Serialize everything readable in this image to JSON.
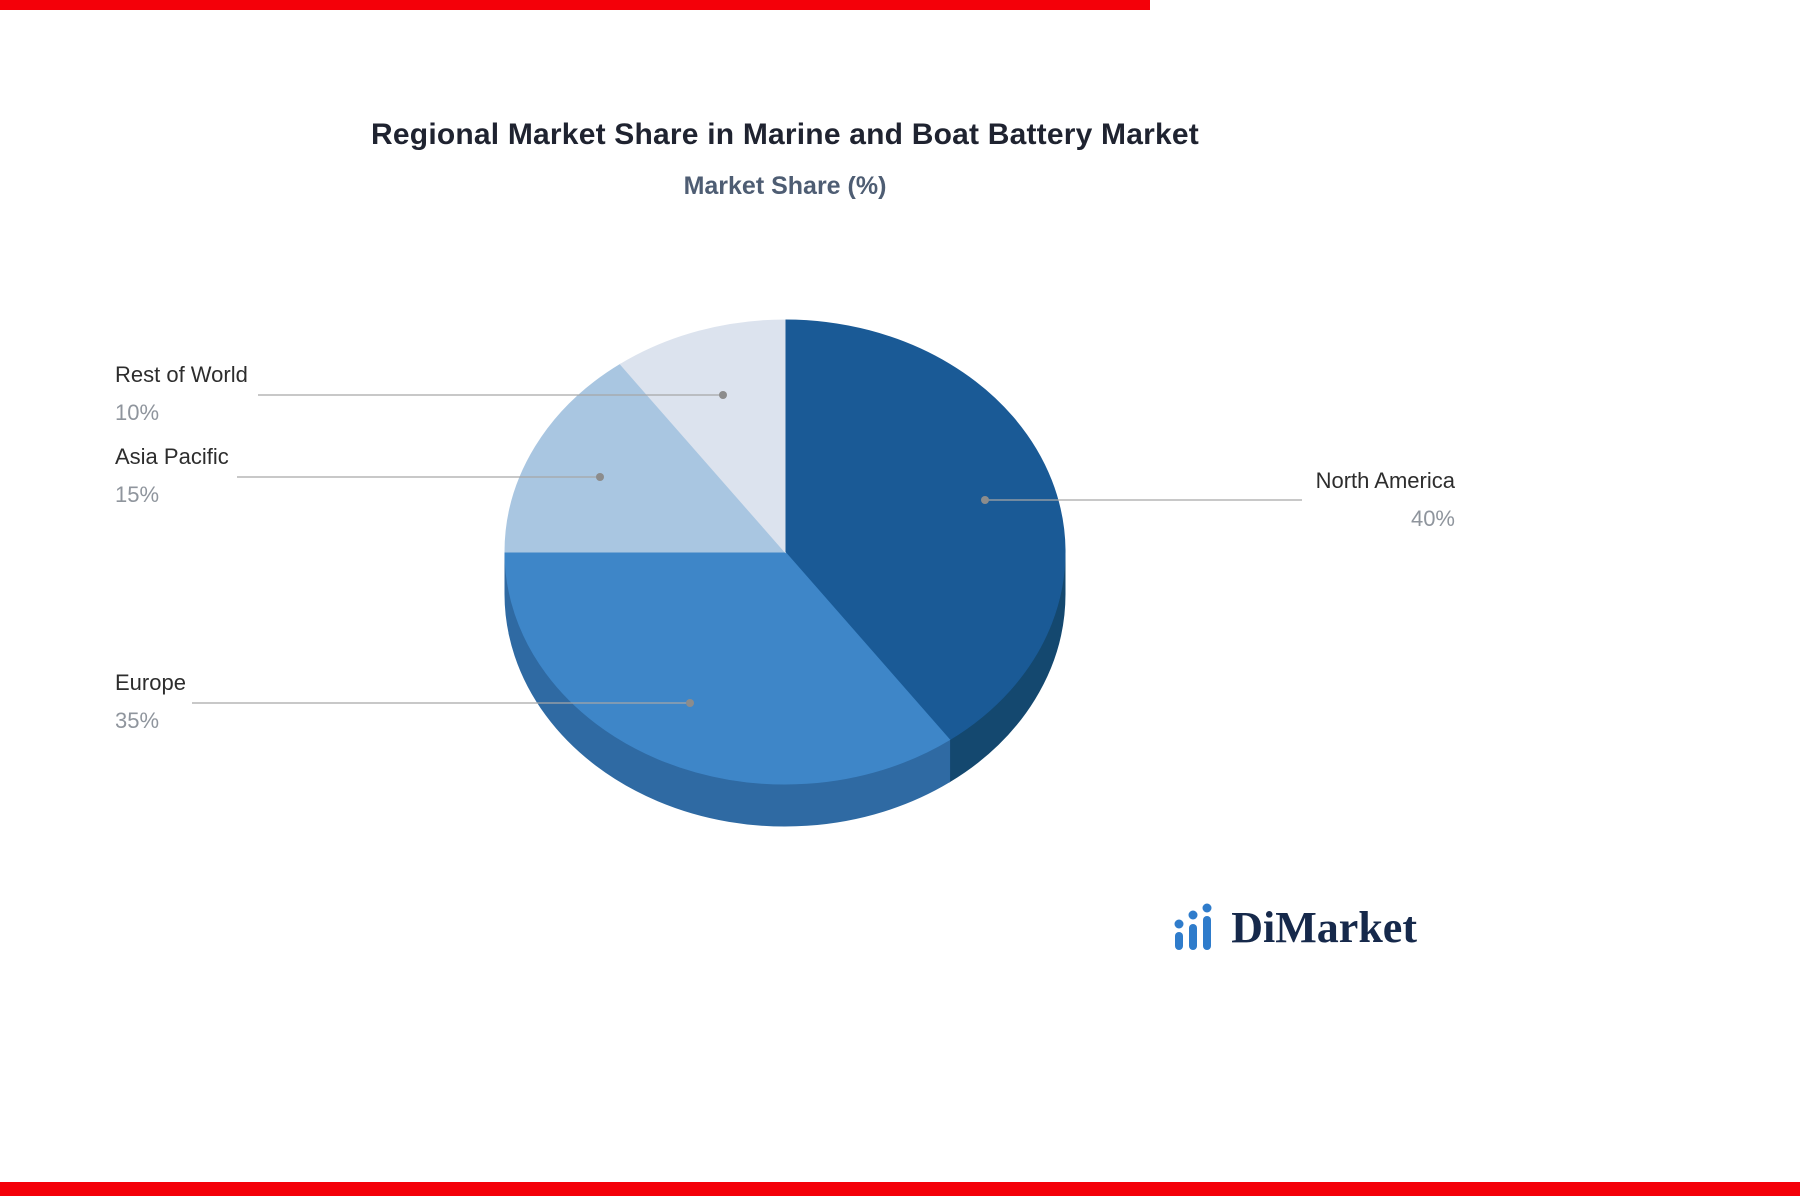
{
  "page": {
    "background": "#ffffff",
    "accent_red": "#f40009"
  },
  "header": {
    "title": "Regional Market Share in Marine and Boat Battery Market",
    "subtitle": "Market Share (%)"
  },
  "chart_data": {
    "type": "pie",
    "title": "Regional Market Share in Marine and Boat Battery Market",
    "subtitle": "Market Share (%)",
    "labels": [
      "North America",
      "Europe",
      "Asia Pacific",
      "Rest of World"
    ],
    "values": [
      40,
      35,
      15,
      10
    ],
    "unit": "%",
    "start_angle_deg": 0,
    "direction": "clockwise",
    "style": "3d-pie",
    "colors": [
      "#1a5a96",
      "#3e86c8",
      "#a9c6e1",
      "#dce3ee"
    ],
    "side_colors": [
      "#14486f",
      "#2f6aa3",
      "#8fb3d4",
      "#c2cfdf"
    ],
    "leader_line_color": "#a6a6a6",
    "callouts": [
      {
        "label": "North America",
        "value": "40%",
        "side": "right"
      },
      {
        "label": "Europe",
        "value": "35%",
        "side": "left"
      },
      {
        "label": "Asia Pacific",
        "value": "15%",
        "side": "left"
      },
      {
        "label": "Rest of World",
        "value": "10%",
        "side": "left"
      }
    ]
  },
  "branding": {
    "logo_text": "DiMarket",
    "logo_icon": "bar-chart-dots-icon",
    "logo_color": "#2f7ccb"
  }
}
